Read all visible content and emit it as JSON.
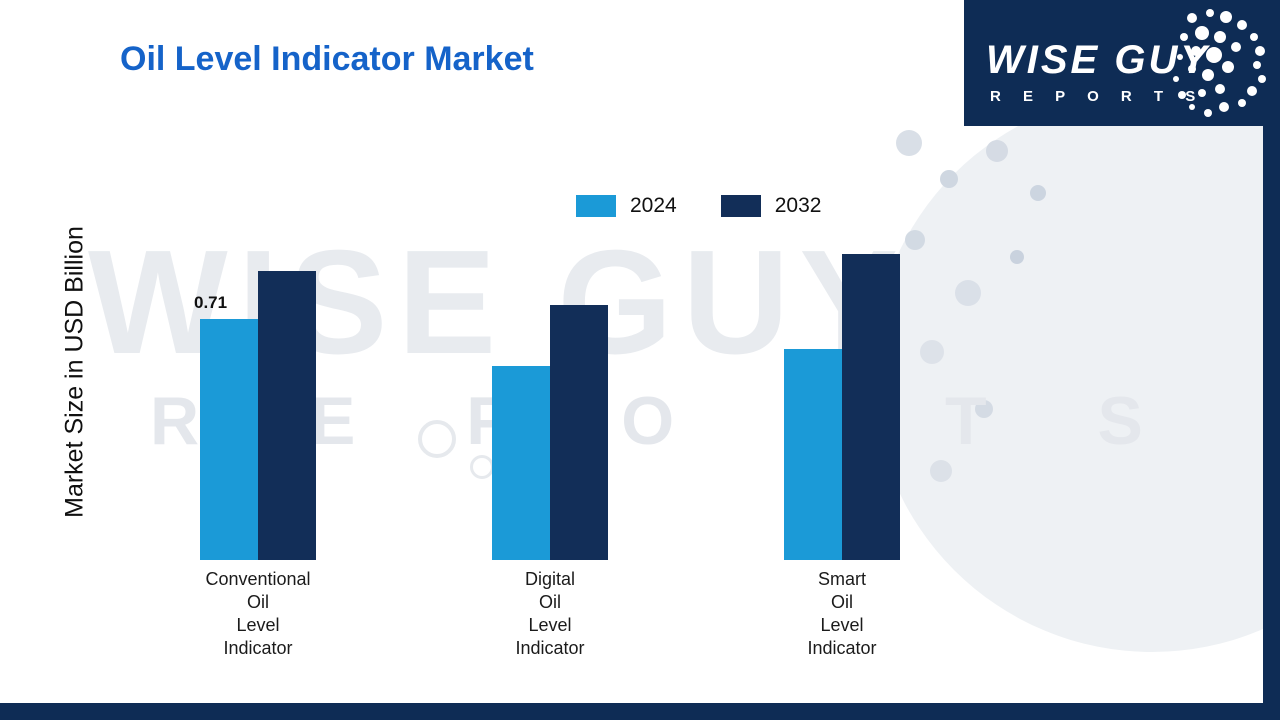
{
  "title": "Oil Level Indicator Market",
  "brand": {
    "name": "WISE GUY",
    "tagline": "R E P O R T S"
  },
  "watermark": {
    "line1": "WISE GUY",
    "line2": "R E P O R T S"
  },
  "colors": {
    "title_blue": "#1563c9",
    "bar_2024": "#1b9ad7",
    "bar_2032": "#122e58",
    "brand_navy": "#0e2c55"
  },
  "chart_data": {
    "type": "bar",
    "title": "Oil Level Indicator Market",
    "xlabel": "",
    "ylabel": "Market Size in USD Billion",
    "ylim": [
      0,
      1.0
    ],
    "grid": false,
    "legend_position": "top",
    "categories": [
      "Conventional Oil Level Indicator",
      "Digital Oil Level Indicator",
      "Smart Oil Level Indicator"
    ],
    "category_lines": [
      [
        "Conventional",
        "Oil",
        "Level",
        "Indicator"
      ],
      [
        "Digital",
        "Oil",
        "Level",
        "Indicator"
      ],
      [
        "Smart",
        "Oil",
        "Level",
        "Indicator"
      ]
    ],
    "series": [
      {
        "name": "2024",
        "color": "#1b9ad7",
        "values": [
          0.71,
          0.57,
          0.62
        ]
      },
      {
        "name": "2032",
        "color": "#122e58",
        "values": [
          0.85,
          0.75,
          0.9
        ]
      }
    ],
    "data_labels": [
      {
        "series": "2024",
        "category": 0,
        "text": "0.71"
      }
    ]
  }
}
